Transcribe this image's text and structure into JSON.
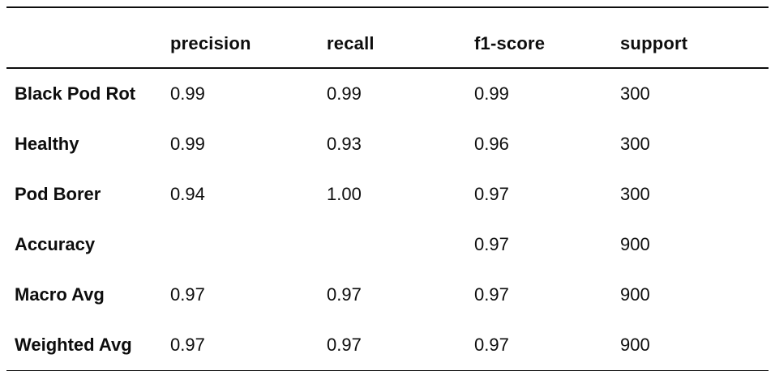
{
  "table": {
    "columns": {
      "label": "",
      "precision": "precision",
      "recall": "recall",
      "f1": "f1-score",
      "support": "support"
    },
    "rows": [
      {
        "label": "Black Pod Rot",
        "precision": "0.99",
        "recall": "0.99",
        "f1": "0.99",
        "support": "300"
      },
      {
        "label": "Healthy",
        "precision": "0.99",
        "recall": "0.93",
        "f1": "0.96",
        "support": "300"
      },
      {
        "label": "Pod Borer",
        "precision": "0.94",
        "recall": "1.00",
        "f1": "0.97",
        "support": "300"
      },
      {
        "label": "Accuracy",
        "precision": "",
        "recall": "",
        "f1": "0.97",
        "support": "900"
      },
      {
        "label": "Macro Avg",
        "precision": "0.97",
        "recall": "0.97",
        "f1": "0.97",
        "support": "900"
      },
      {
        "label": "Weighted Avg",
        "precision": "0.97",
        "recall": "0.97",
        "f1": "0.97",
        "support": "900"
      }
    ],
    "colors": {
      "text": "#0d0d0d",
      "background": "#ffffff",
      "rule": "#0d0d0d"
    }
  }
}
